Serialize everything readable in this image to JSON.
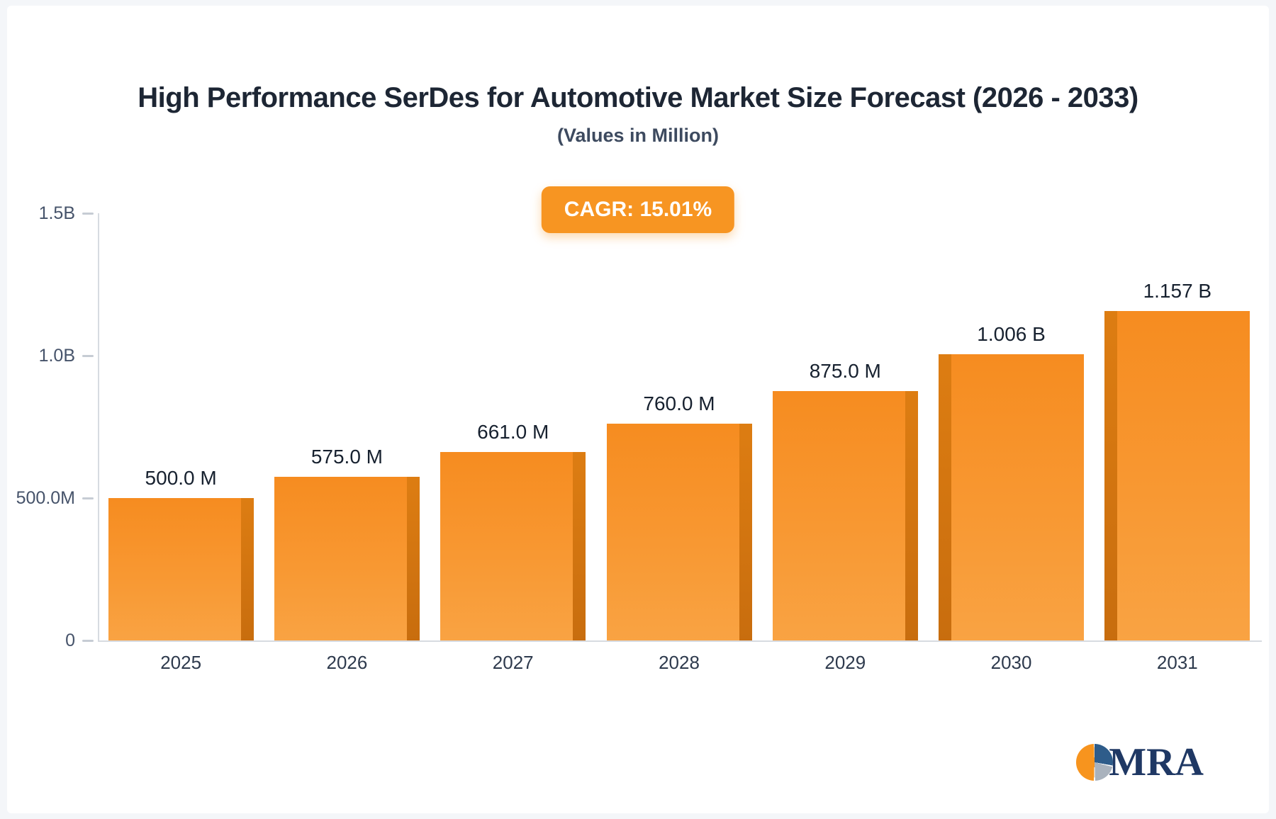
{
  "header": {
    "title": "High Performance SerDes for Automotive Market Size Forecast (2026 - 2033)",
    "subtitle": "(Values in Million)"
  },
  "badge": {
    "label": "CAGR: 15.01%"
  },
  "logo": {
    "text": "MRA"
  },
  "chart_data": {
    "type": "bar",
    "title": "High Performance SerDes for Automotive Market Size Forecast (2026 - 2033)",
    "subtitle": "(Values in Million)",
    "annotation": "CAGR: 15.01%",
    "categories": [
      "2025",
      "2026",
      "2027",
      "2028",
      "2029",
      "2030",
      "2031"
    ],
    "values": [
      500,
      575,
      661,
      760,
      875,
      1006,
      1157
    ],
    "value_labels": [
      "500.0 M",
      "575.0 M",
      "661.0 M",
      "760.0 M",
      "875.0 M",
      "1.006 B",
      "1.157 B"
    ],
    "unit": "Million",
    "xlabel": "",
    "ylabel": "",
    "ylim": [
      0,
      1500
    ],
    "yticks": [
      {
        "value": 0,
        "label": "0"
      },
      {
        "value": 500,
        "label": "500.0M"
      },
      {
        "value": 1000,
        "label": "1.0B"
      },
      {
        "value": 1500,
        "label": "1.5B"
      }
    ],
    "grid": false,
    "legend": false,
    "bar_color": "#f78f22",
    "bar_shade_color": "#c86d0e"
  },
  "colors": {
    "accent": "#f79522",
    "title_text": "#1d2634",
    "subtitle_text": "#3d4a5f",
    "axis_line": "#d7dbe1",
    "tick_text": "#46536a",
    "logo_navy": "#1f3864",
    "background": "#ffffff"
  }
}
